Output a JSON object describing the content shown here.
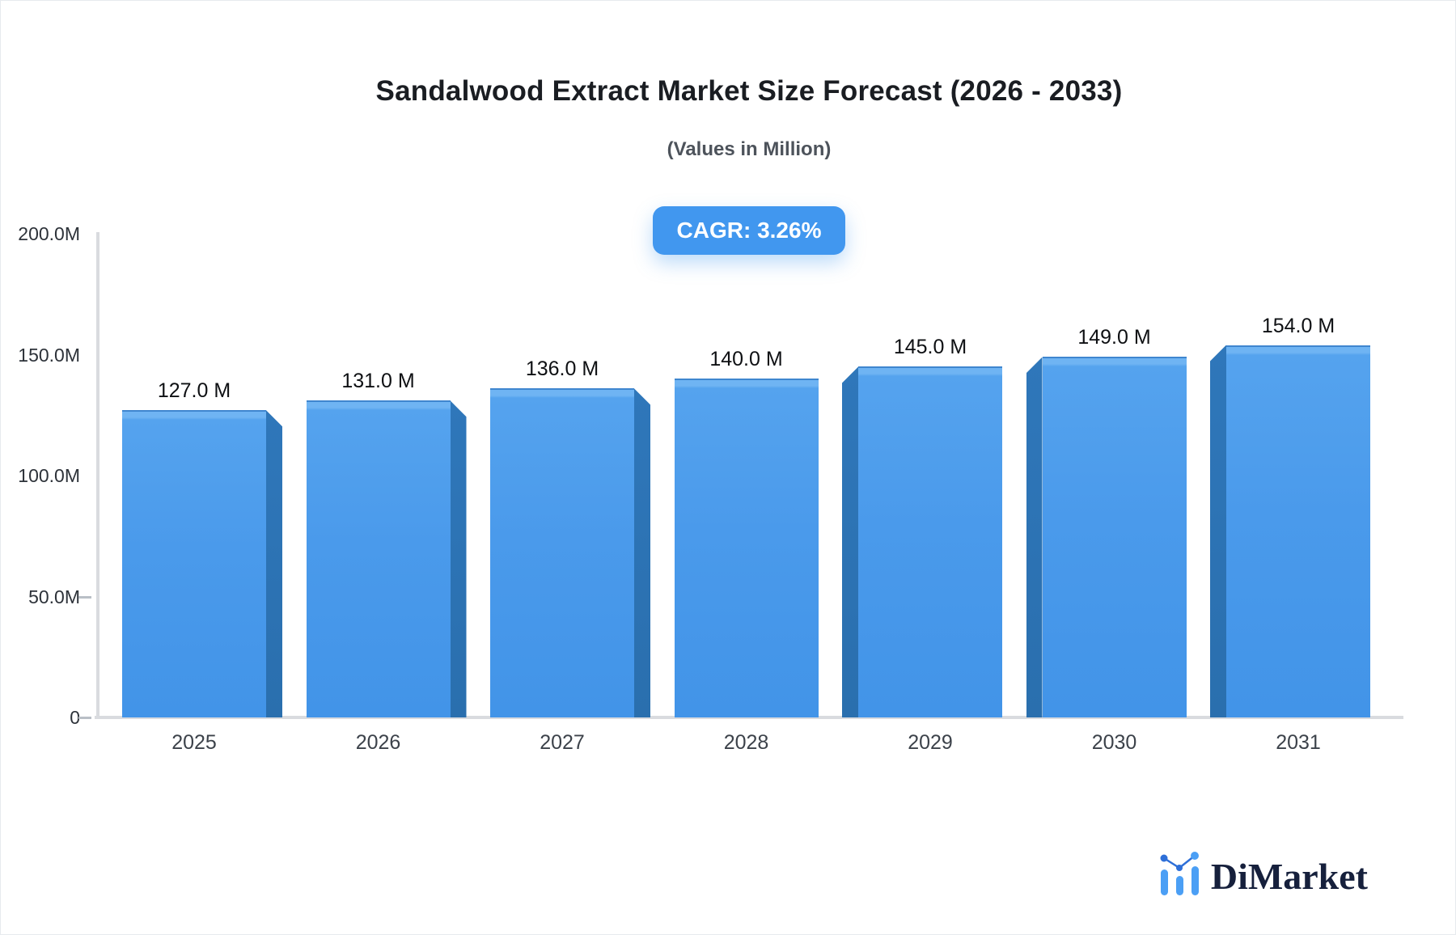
{
  "header": {
    "title": "Sandalwood Extract Market Size Forecast (2026 - 2033)",
    "subtitle": "(Values in Million)",
    "cagr_badge": "CAGR: 3.26%"
  },
  "chart_data": {
    "type": "bar",
    "title": "Sandalwood Extract Market Size Forecast (2026 - 2033)",
    "subtitle": "(Values in Million)",
    "categories": [
      "2025",
      "2026",
      "2027",
      "2028",
      "2029",
      "2030",
      "2031"
    ],
    "values": [
      127,
      131,
      136,
      140,
      145,
      149,
      154
    ],
    "value_labels": [
      "127.0 M",
      "131.0 M",
      "136.0 M",
      "140.0 M",
      "145.0 M",
      "149.0 M",
      "154.0 M"
    ],
    "xlabel": "",
    "ylabel": "",
    "ylim": [
      0,
      200
    ],
    "y_ticks": [
      {
        "value": 200,
        "label": "200.0M"
      },
      {
        "value": 150,
        "label": "150.0M"
      },
      {
        "value": 100,
        "label": "100.0M"
      },
      {
        "value": 50,
        "label": "50.0M"
      },
      {
        "value": 0,
        "label": "0"
      }
    ],
    "tick_marks_visible": [
      "50.0M",
      "0"
    ],
    "grid": false,
    "legend": "none",
    "bar_color_top": "#6fb4f3",
    "bar_color_main": "#4a9aeb",
    "bar_side_color": "#2d73b5",
    "axis_color": "#d9dbdf",
    "cagr": "3.26%"
  },
  "branding": {
    "logo_text": "DiMarket",
    "logo_icon": "bar-line-chart-icon",
    "logo_bar_color": "#4b9ff5",
    "logo_line_color": "#2e6fd8"
  }
}
